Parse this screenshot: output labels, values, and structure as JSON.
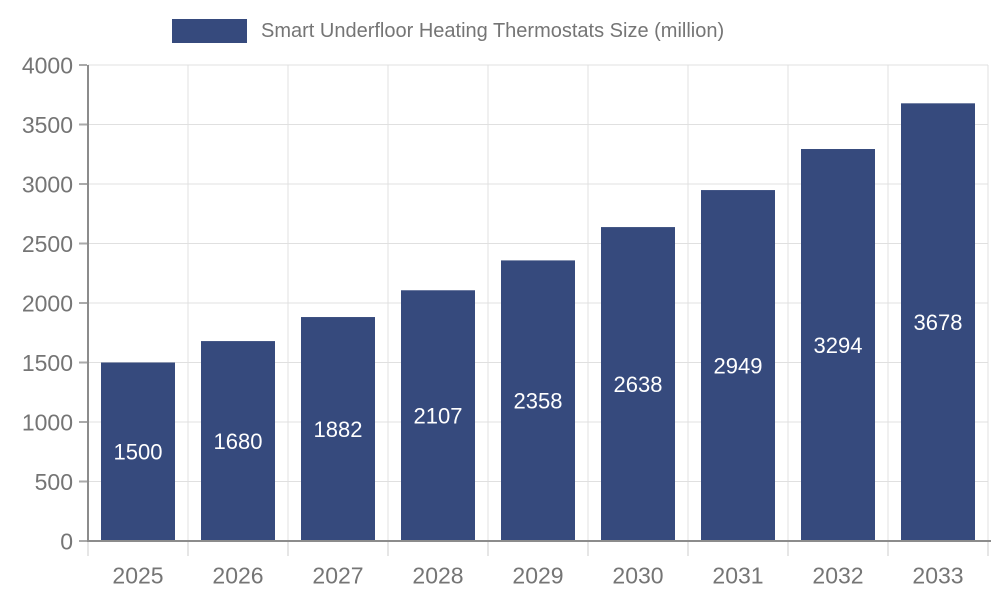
{
  "legend": {
    "label": "Smart Underfloor Heating Thermostats Size (million)"
  },
  "chart_data": {
    "type": "bar",
    "title": "Smart Underfloor Heating Thermostats Size (million)",
    "categories": [
      "2025",
      "2026",
      "2027",
      "2028",
      "2029",
      "2030",
      "2031",
      "2032",
      "2033"
    ],
    "values": [
      1500,
      1680,
      1882,
      2107,
      2358,
      2638,
      2949,
      3294,
      3678
    ],
    "xlabel": "",
    "ylabel": "",
    "ylim": [
      0,
      4000
    ],
    "ytick_step": 500,
    "ytick_labels": [
      "0",
      "500",
      "1000",
      "1500",
      "2000",
      "2500",
      "3000",
      "3500",
      "4000"
    ],
    "grid": true,
    "legend_position": "top",
    "bar_color": "#364a7d",
    "value_label_color": "#ffffff",
    "grid_color": "#e0e0e0",
    "axis_line_color": "#8c8c8c",
    "y_tick_color": "#aaaaaa",
    "x_tick_color": "#cccccc",
    "label_color": "#757575"
  }
}
